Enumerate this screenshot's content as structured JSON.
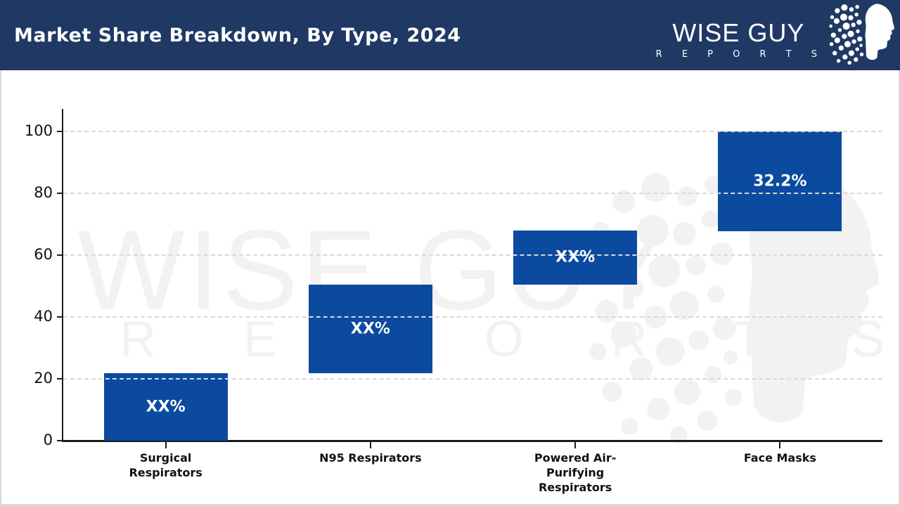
{
  "header": {
    "title": "Market Share Breakdown, By Type, 2024",
    "background": "#1f3864",
    "logo": {
      "line1": "WISE GUY",
      "line2": "R E P O R T S"
    }
  },
  "watermark": {
    "line1": "WISE GUY",
    "line2": "R E P O R T S"
  },
  "chart_data": {
    "type": "bar",
    "subtype": "waterfall-floating-bars",
    "title": "Market Share Breakdown, By Type, 2024",
    "categories": [
      "Surgical\nRespirators",
      "N95 Respirators",
      "Powered Air-\nPurifying\nRespirators",
      "Face Masks"
    ],
    "segments": [
      {
        "category": "Surgical\nRespirators",
        "start": 0,
        "end": 21.8,
        "value_label": "XX%"
      },
      {
        "category": "N95 Respirators",
        "start": 21.8,
        "end": 50.5,
        "value_label": "XX%"
      },
      {
        "category": "Powered Air-\nPurifying\nRespirators",
        "start": 50.5,
        "end": 68,
        "value_label": "XX%"
      },
      {
        "category": "Face Masks",
        "start": 67.8,
        "end": 100,
        "value_label": "32.2%"
      }
    ],
    "xlabel": "",
    "ylabel": "",
    "y_ticks": [
      0,
      20,
      40,
      60,
      80,
      100
    ],
    "ylim": [
      0,
      107
    ],
    "grid": "dashed horizontal",
    "legend": "none",
    "bar_color": "#0b4a9f",
    "grid_color": "#d9d9d9",
    "axis_color": "#1a1a1a",
    "value_label_color": "#ffffff"
  }
}
